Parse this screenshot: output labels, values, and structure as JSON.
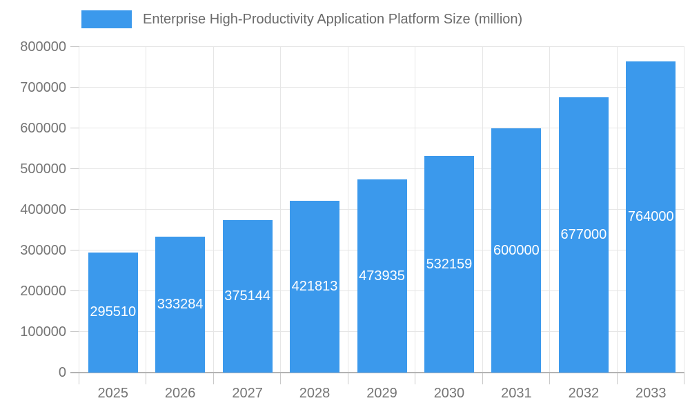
{
  "chart_data": {
    "type": "bar",
    "title": "Enterprise High-Productivity Application Platform Size (million)",
    "categories": [
      "2025",
      "2026",
      "2027",
      "2028",
      "2029",
      "2030",
      "2031",
      "2032",
      "2033"
    ],
    "values": [
      295510,
      333284,
      375144,
      421813,
      473935,
      532159,
      600000,
      677000,
      764000
    ],
    "bar_value_labels": [
      "295510",
      "333284",
      "375144",
      "421813",
      "473935",
      "532159",
      "600000",
      "677000",
      "764000"
    ],
    "xlabel": "",
    "ylabel": "",
    "ylim": [
      0,
      800000
    ],
    "ytick_step": 100000,
    "yticks": [
      "0",
      "100000",
      "200000",
      "300000",
      "400000",
      "500000",
      "600000",
      "700000",
      "800000"
    ],
    "grid": "on",
    "legend_position": "top",
    "colors": {
      "bar": "#3b99ec",
      "grid": "#e6e6e6",
      "axis_line": "#b3b3b3",
      "tick": "#c9c9c9",
      "axis_label": "#757575",
      "title_text": "#6b6b6b",
      "bar_label_text": "#ffffff",
      "background": "#ffffff"
    }
  }
}
